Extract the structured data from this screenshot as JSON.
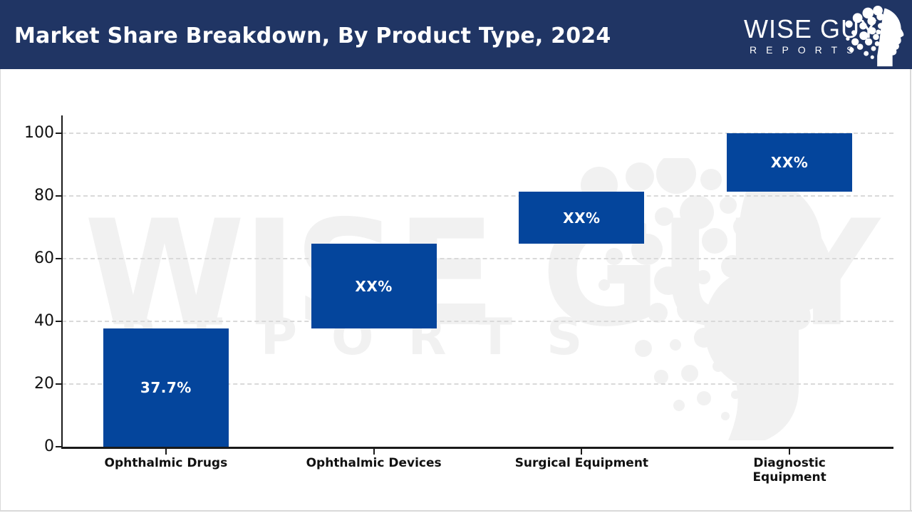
{
  "header": {
    "title": "Market Share Breakdown, By Product Type, 2024",
    "background_color": "#203564",
    "logo": {
      "line1": "WISE GUY",
      "line2": "REPORTS",
      "head_icon": "dotted-head-profile"
    }
  },
  "watermark": {
    "line1": "WISE GUY",
    "line2": "REPORTS",
    "head_icon": "dotted-head-profile"
  },
  "chart_data": {
    "type": "bar",
    "subtype": "waterfall-stacked",
    "title": "Market Share Breakdown, By Product Type, 2024",
    "categories": [
      "Ophthalmic Drugs",
      "Ophthalmic Devices",
      "Surgical Equipment",
      "Diagnostic\nEquipment"
    ],
    "segments": [
      {
        "category": "Ophthalmic Drugs",
        "start": 0,
        "end": 37.7,
        "value_label": "37.7%"
      },
      {
        "category": "Ophthalmic Devices",
        "start": 37.7,
        "end": 64.7,
        "value_label": "XX%"
      },
      {
        "category": "Surgical Equipment",
        "start": 64.7,
        "end": 81.3,
        "value_label": "XX%"
      },
      {
        "category": "Diagnostic Equipment",
        "start": 81.3,
        "end": 100,
        "value_label": "XX%"
      }
    ],
    "yticks": [
      0,
      20,
      40,
      60,
      80,
      100
    ],
    "ylim": [
      0,
      106
    ],
    "xlabel": "",
    "ylabel": "",
    "legend": "none",
    "grid": "horizontal-dashed",
    "bar_color": "#04459C",
    "value_label_color": "#ffffff",
    "axis_color": "#1a1a1a",
    "gridline_color": "#d9d9d9"
  }
}
